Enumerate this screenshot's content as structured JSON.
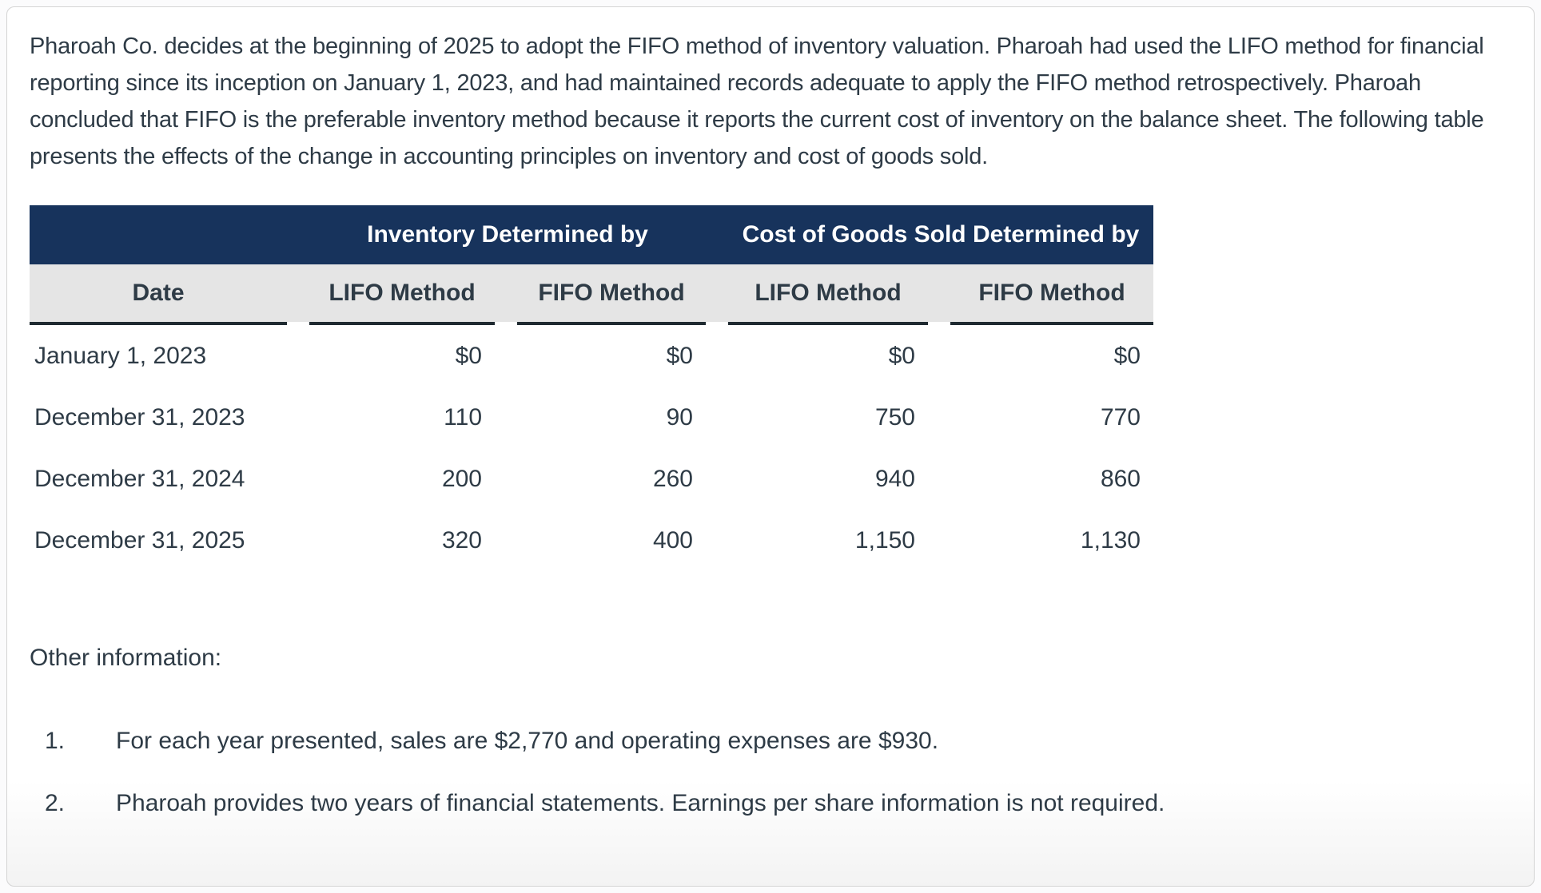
{
  "intro": {
    "text": "Pharoah Co. decides at the beginning of 2025 to adopt the FIFO method of inventory valuation. Pharoah had used the LIFO method for financial reporting since its inception on January 1, 2023, and had maintained records adequate to apply the FIFO method retrospectively. Pharoah concluded that FIFO is the preferable inventory method because it reports the current cost of inventory on the balance sheet. The following table presents the effects of the change in accounting principles on inventory and cost of goods sold."
  },
  "table": {
    "group_headers": [
      {
        "label": "Inventory Determined by"
      },
      {
        "label": "Cost of Goods Sold Determined by"
      }
    ],
    "columns": [
      "Date",
      "LIFO Method",
      "FIFO Method",
      "LIFO Method",
      "FIFO Method"
    ],
    "rows": [
      {
        "date": "January 1, 2023",
        "values": [
          "$0",
          "$0",
          "$0",
          "$0"
        ]
      },
      {
        "date": "December 31, 2023",
        "values": [
          "110",
          "90",
          "750",
          "770"
        ]
      },
      {
        "date": "December 31, 2024",
        "values": [
          "200",
          "260",
          "940",
          "860"
        ]
      },
      {
        "date": "December 31, 2025",
        "values": [
          "320",
          "400",
          "1,150",
          "1,130"
        ]
      }
    ],
    "colors": {
      "header_bg": "#17335c",
      "header_text": "#ffffff",
      "subheader_bg": "#e5e5e5",
      "body_text": "#2e3b46",
      "rule": "#1f2a31"
    }
  },
  "other_info": {
    "heading": "Other information:",
    "items": [
      {
        "num": "1.",
        "text": "For each year presented, sales are $2,770 and operating expenses are $930."
      },
      {
        "num": "2.",
        "text": "Pharoah provides two years of financial statements. Earnings per share information is not required."
      }
    ]
  }
}
